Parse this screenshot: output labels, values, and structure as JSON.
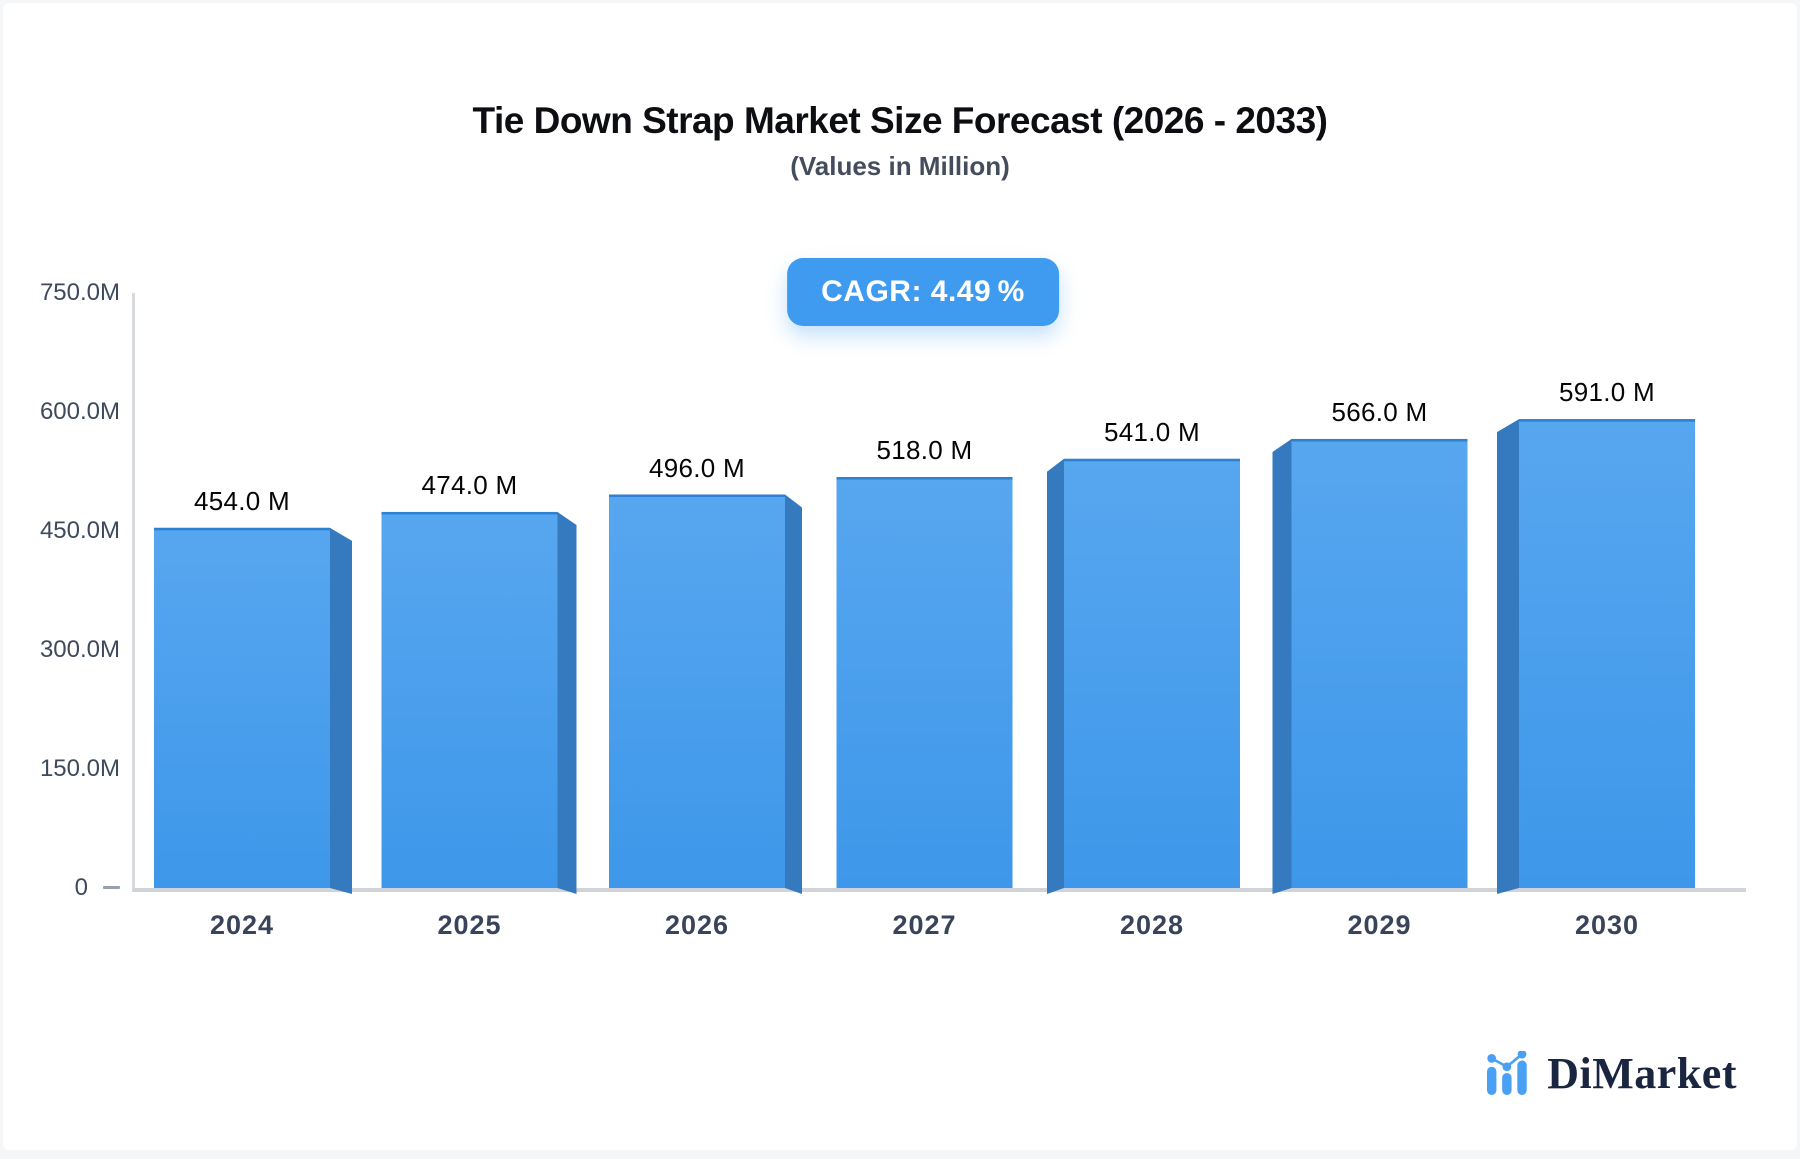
{
  "header": {
    "title": "Tie Down Strap Market Size Forecast (2026 - 2033)",
    "subtitle": "(Values in Million)",
    "cagr_badge": "CAGR: 4.49 %"
  },
  "chart_data": {
    "type": "bar",
    "title": "Tie Down Strap Market Size Forecast (2026 - 2033)",
    "subtitle": "(Values in Million)",
    "unit": "Million",
    "cagr_percent": 4.49,
    "categories": [
      "2024",
      "2025",
      "2026",
      "2027",
      "2028",
      "2029",
      "2030"
    ],
    "values": [
      454,
      474,
      496,
      518,
      541,
      566,
      591
    ],
    "value_labels": [
      "454.0 M",
      "474.0 M",
      "496.0 M",
      "518.0 M",
      "541.0 M",
      "566.0 M",
      "591.0 M"
    ],
    "yticks": [
      {
        "value": 0,
        "label": "0"
      },
      {
        "value": 150,
        "label": "150.0M"
      },
      {
        "value": 300,
        "label": "300.0M"
      },
      {
        "value": 450,
        "label": "450.0M"
      },
      {
        "value": 600,
        "label": "600.0M"
      },
      {
        "value": 750,
        "label": "750.0M"
      }
    ],
    "ylim": [
      0,
      750
    ],
    "grid": false,
    "legend": false,
    "bar_style": "3d-perspective"
  },
  "branding": {
    "logo_text": "DiMarket",
    "logo_icon": "mini-bar-chart-icon"
  },
  "colors": {
    "accent_blue": "#3f9bef",
    "bar_face_top": "#57a7ef",
    "bar_face_bottom": "#3e97ea",
    "bar_top_edge": "#2d80d2",
    "bar_side": "#3579bf",
    "axis_line": "#d7dadd",
    "baseline": "#d0d4d8",
    "tick_label": "#3e4a5c",
    "category_label": "#39445a",
    "value_label": "#050505",
    "badge_bg": "#3f9bef",
    "badge_text": "#ffffff",
    "logo_navy": "#1a2540",
    "logo_blue": "#4aa0f5"
  }
}
